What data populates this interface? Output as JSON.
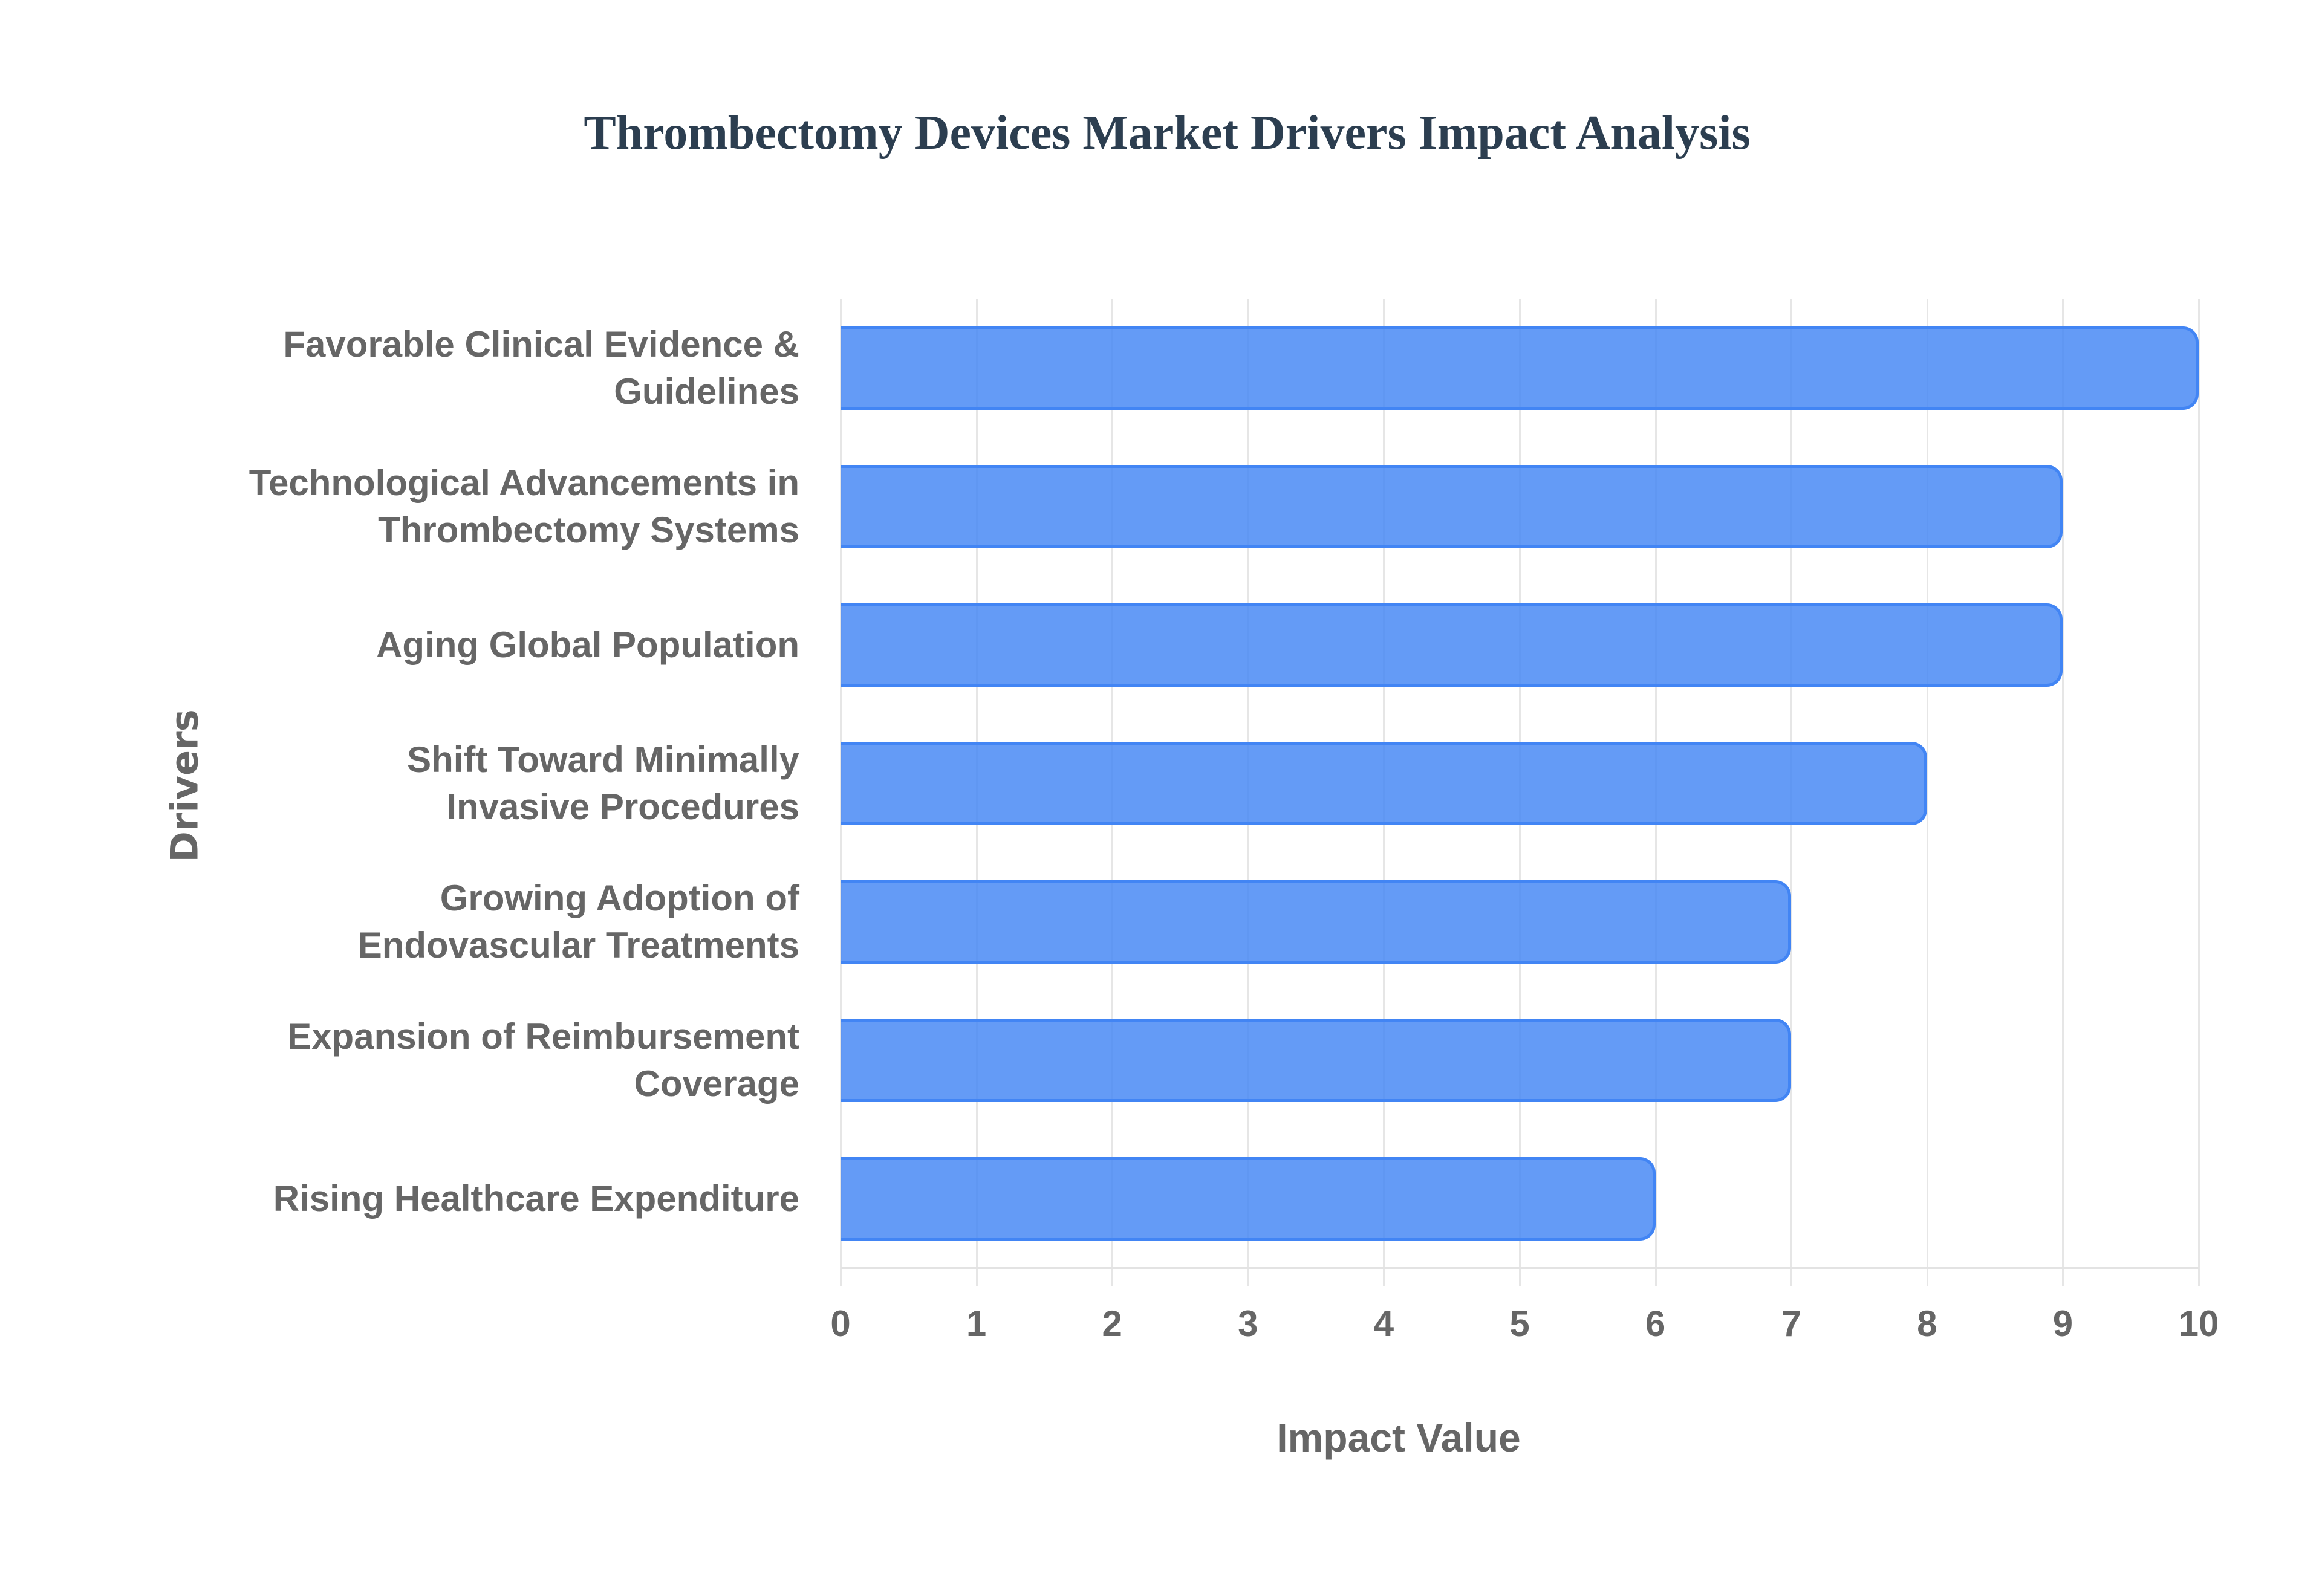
{
  "chart_data": {
    "type": "bar",
    "orientation": "horizontal",
    "title": "Thrombectomy Devices Market Drivers Impact Analysis",
    "xlabel": "Impact Value",
    "ylabel": "Drivers",
    "xlim": [
      0,
      10
    ],
    "x_ticks": [
      "0",
      "1",
      "2",
      "3",
      "4",
      "5",
      "6",
      "7",
      "8",
      "9",
      "10"
    ],
    "grid": true,
    "legend": null,
    "categories": [
      "Favorable Clinical Evidence & Guidelines",
      "Technological Advancements in Thrombectomy Systems",
      "Aging Global Population",
      "Shift Toward Minimally Invasive Procedures",
      "Growing Adoption of Endovascular Treatments",
      "Expansion of Reimbursement Coverage",
      "Rising Healthcare Expenditure"
    ],
    "category_lines": [
      [
        "Favorable Clinical Evidence &",
        "Guidelines"
      ],
      [
        "Technological Advancements in",
        "Thrombectomy Systems"
      ],
      [
        "Aging Global Population"
      ],
      [
        "Shift Toward Minimally",
        "Invasive Procedures"
      ],
      [
        "Growing Adoption of",
        "Endovascular Treatments"
      ],
      [
        "Expansion of Reimbursement",
        "Coverage"
      ],
      [
        "Rising Healthcare Expenditure"
      ]
    ],
    "values": [
      10,
      9,
      9,
      8,
      7,
      7,
      6
    ],
    "colors": {
      "bar_fill": "#6199f5",
      "bar_border": "#4285f4",
      "title": "#2c3e50",
      "text": "#666666",
      "grid": "#e6e6e6"
    }
  }
}
